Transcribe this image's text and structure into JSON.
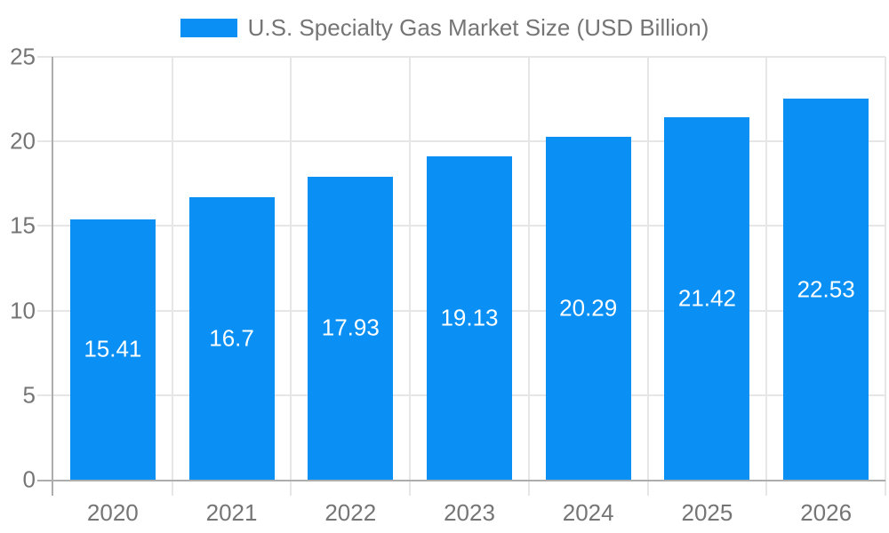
{
  "chart_data": {
    "type": "bar",
    "title": "U.S. Specialty Gas Market Size (USD Billion)",
    "categories": [
      "2020",
      "2021",
      "2022",
      "2023",
      "2024",
      "2025",
      "2026"
    ],
    "values": [
      15.41,
      16.7,
      17.93,
      19.13,
      20.29,
      21.42,
      22.53
    ],
    "value_labels": [
      "15.41",
      "16.7",
      "17.93",
      "19.13",
      "20.29",
      "21.42",
      "22.53"
    ],
    "ylim": [
      0,
      25
    ],
    "yticks": [
      0,
      5,
      10,
      15,
      20,
      25
    ],
    "grid": true,
    "legend_position": "top",
    "bar_color": "#0a90f5",
    "value_label_color": "#ffffff",
    "axis_text_color": "#757575",
    "grid_color": "#e6e6e6",
    "axis_line_color": "#adadad",
    "background_color": "#ffffff"
  }
}
